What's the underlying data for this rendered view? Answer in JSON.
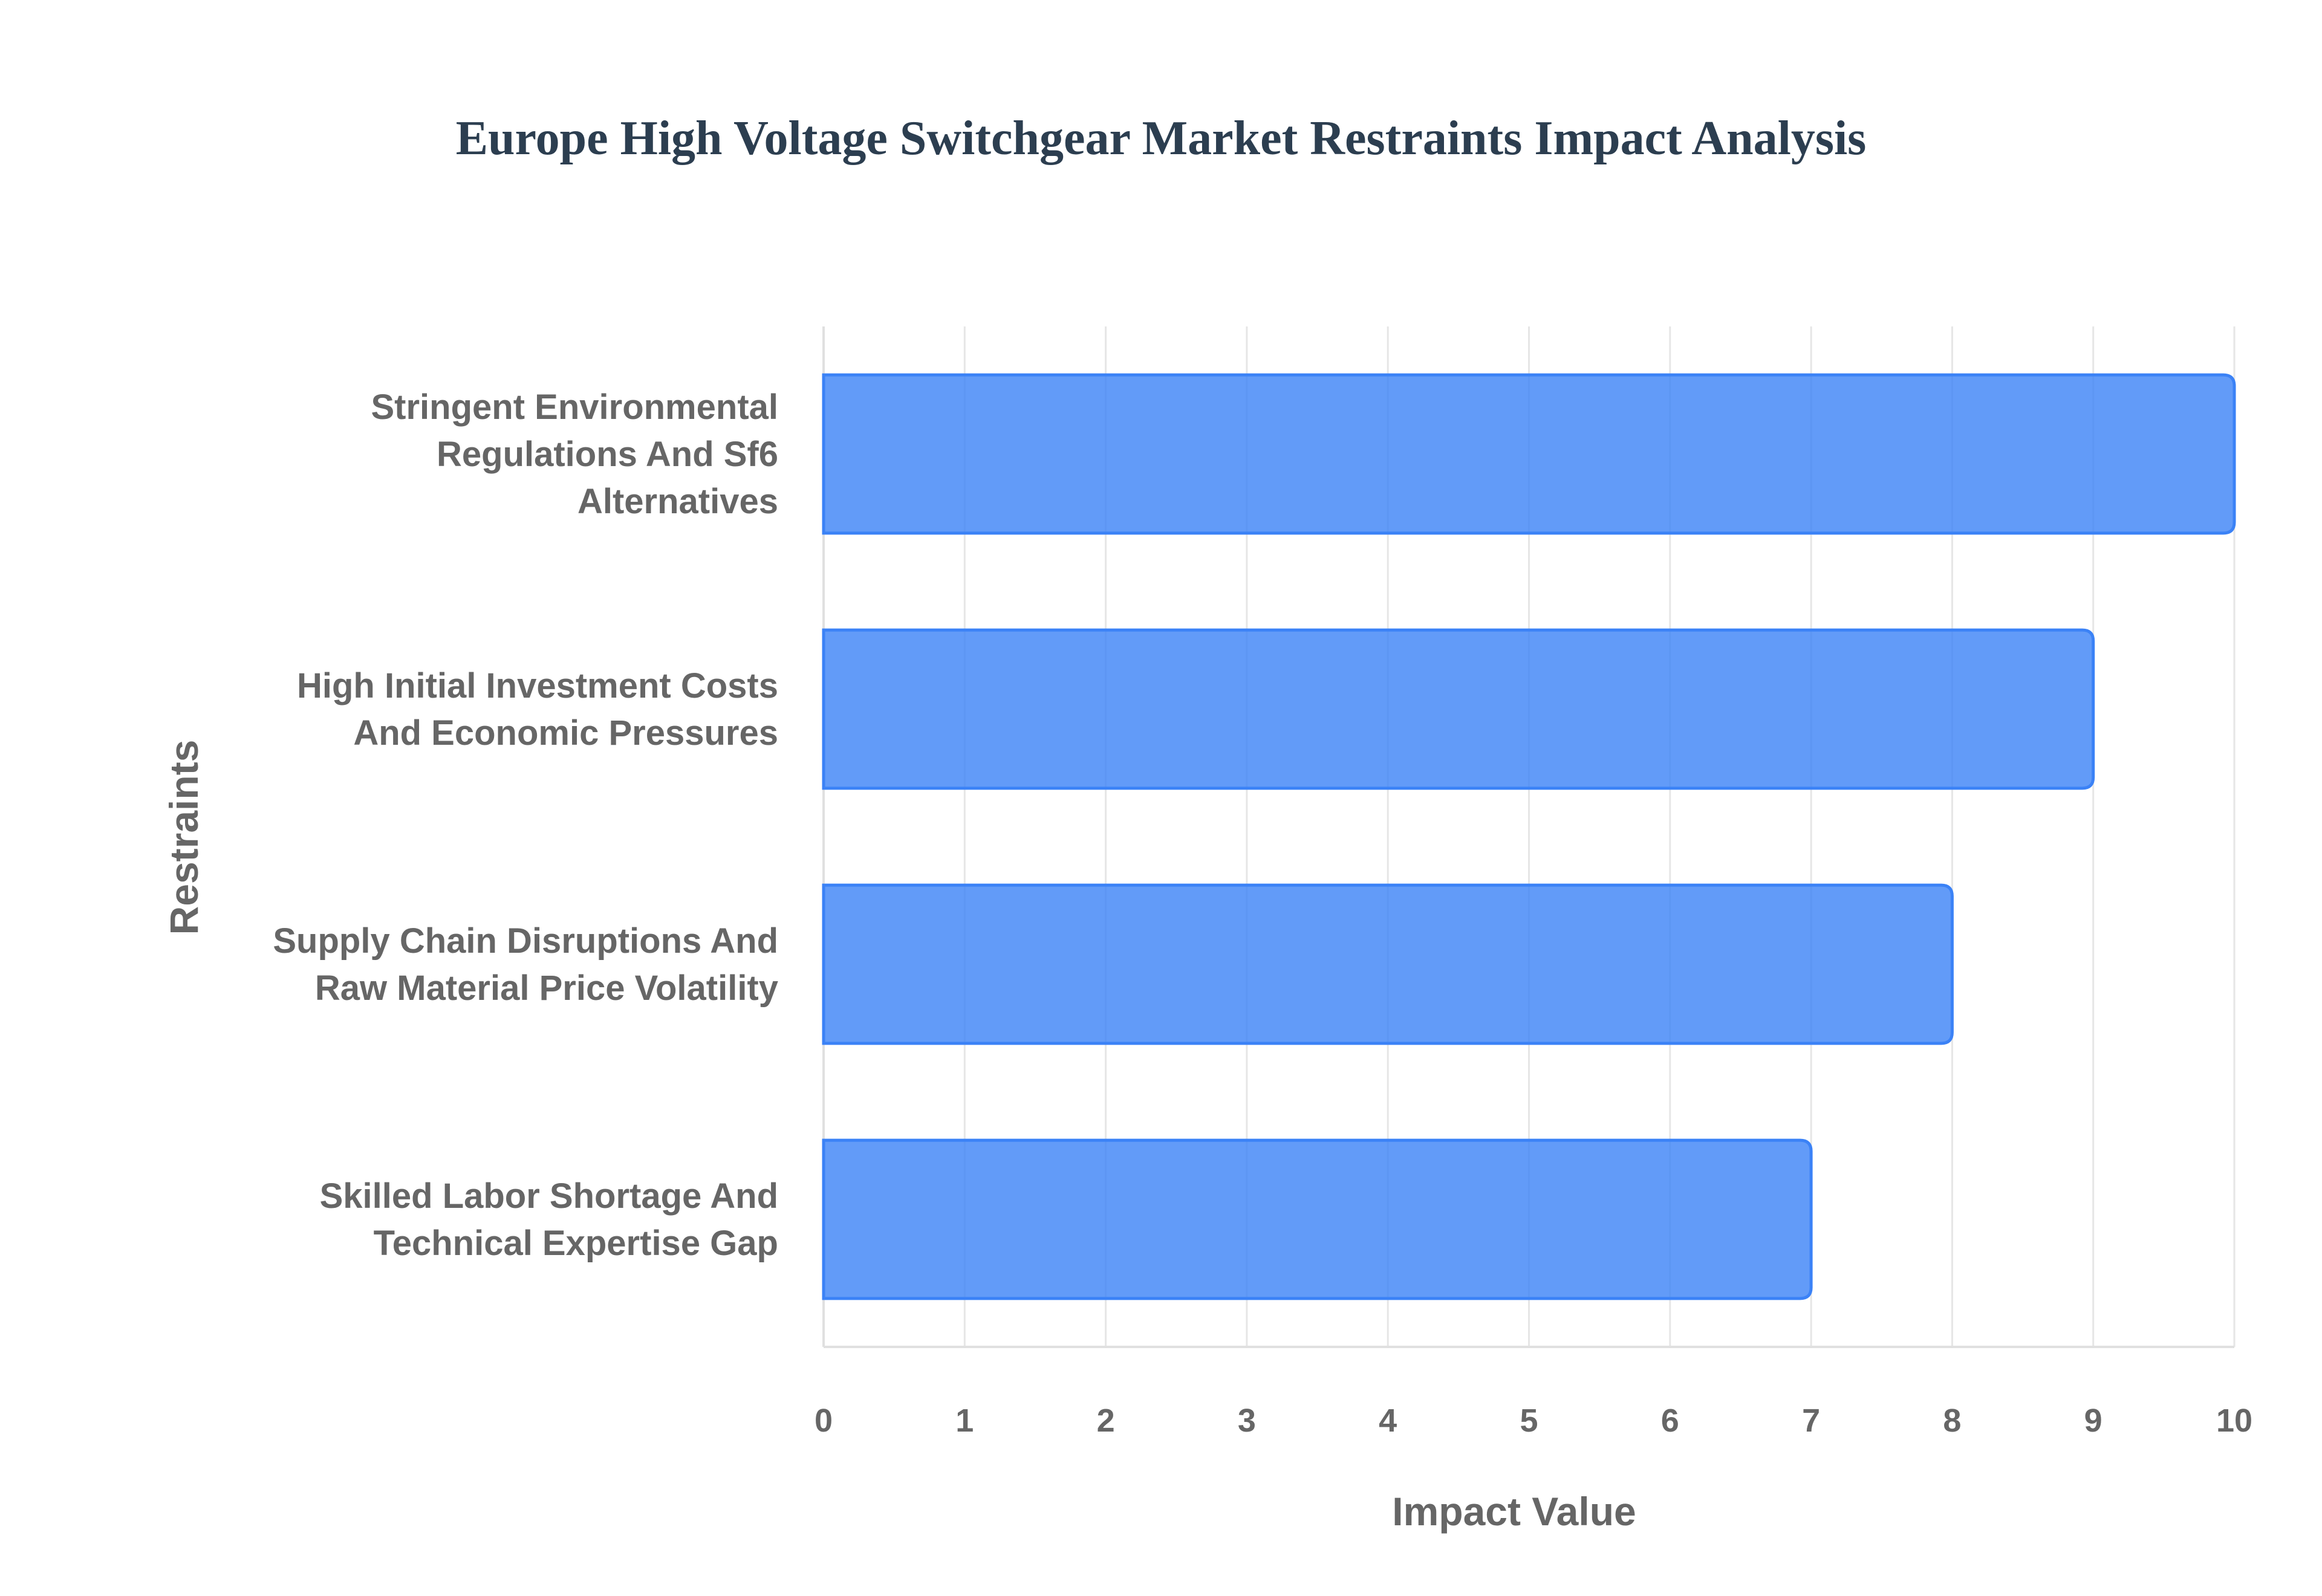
{
  "chart_data": {
    "type": "bar",
    "orientation": "horizontal",
    "title": "Europe High Voltage Switchgear Market Restraints Impact Analysis",
    "xlabel": "Impact Value",
    "ylabel": "Restraints",
    "xlim": [
      0,
      10
    ],
    "xticks": [
      "0",
      "1",
      "2",
      "3",
      "4",
      "5",
      "6",
      "7",
      "8",
      "9",
      "10"
    ],
    "grid": true,
    "legend": "none",
    "bar_color": "#3b82f6",
    "categories": [
      [
        "Stringent Environmental",
        "Regulations And Sf6",
        "Alternatives"
      ],
      [
        "High Initial Investment Costs",
        "And Economic Pressures"
      ],
      [
        "Supply Chain Disruptions And",
        "Raw Material Price Volatility"
      ],
      [
        "Skilled Labor Shortage And",
        "Technical Expertise Gap"
      ]
    ],
    "values": [
      10,
      9,
      8,
      7
    ]
  }
}
